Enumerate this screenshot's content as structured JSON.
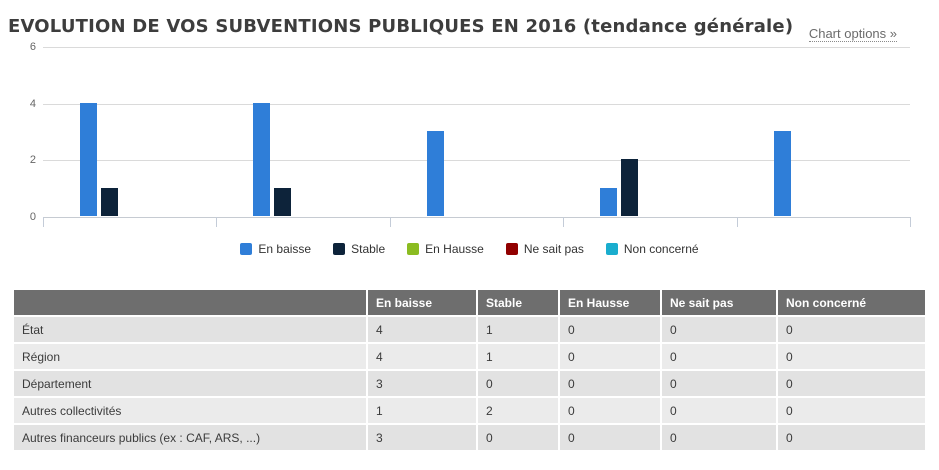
{
  "title": "EVOLUTION DE VOS SUBVENTIONS PUBLIQUES EN 2016 (tendance générale)",
  "chart_options_label": "Chart options »",
  "chart_data": {
    "type": "bar",
    "title": "EVOLUTION DE VOS SUBVENTIONS PUBLIQUES EN 2016 (tendance générale)",
    "categories": [
      "État",
      "Région",
      "Département",
      "Autres collectivités",
      "Autres financeurs publics (ex : CAF, ARS, ...)"
    ],
    "series": [
      {
        "name": "En baisse",
        "color": "#2f7ed8",
        "values": [
          4,
          4,
          3,
          1,
          3
        ]
      },
      {
        "name": "Stable",
        "color": "#0d233a",
        "values": [
          1,
          1,
          0,
          2,
          0
        ]
      },
      {
        "name": "En Hausse",
        "color": "#8bbc21",
        "values": [
          0,
          0,
          0,
          0,
          0
        ]
      },
      {
        "name": "Ne sait pas",
        "color": "#910000",
        "values": [
          0,
          0,
          0,
          0,
          0
        ]
      },
      {
        "name": "Non concerné",
        "color": "#1aadce",
        "values": [
          0,
          0,
          0,
          0,
          0
        ]
      }
    ],
    "xlabel": "",
    "ylabel": "",
    "ylim": [
      0,
      6
    ],
    "yticks": [
      0,
      2,
      4,
      6
    ],
    "grid": true,
    "legend_position": "bottom",
    "x_tick_labels_shown": false
  },
  "table": {
    "headers": [
      "",
      "En baisse",
      "Stable",
      "En Hausse",
      "Ne sait pas",
      "Non concerné"
    ],
    "rows": [
      {
        "label": "État",
        "values": [
          "4",
          "1",
          "0",
          "0",
          "0"
        ]
      },
      {
        "label": "Région",
        "values": [
          "4",
          "1",
          "0",
          "0",
          "0"
        ]
      },
      {
        "label": "Département",
        "values": [
          "3",
          "0",
          "0",
          "0",
          "0"
        ]
      },
      {
        "label": "Autres collectivités",
        "values": [
          "1",
          "2",
          "0",
          "0",
          "0"
        ]
      },
      {
        "label": "Autres financeurs publics (ex : CAF, ARS, ...)",
        "values": [
          "3",
          "0",
          "0",
          "0",
          "0"
        ]
      }
    ]
  }
}
